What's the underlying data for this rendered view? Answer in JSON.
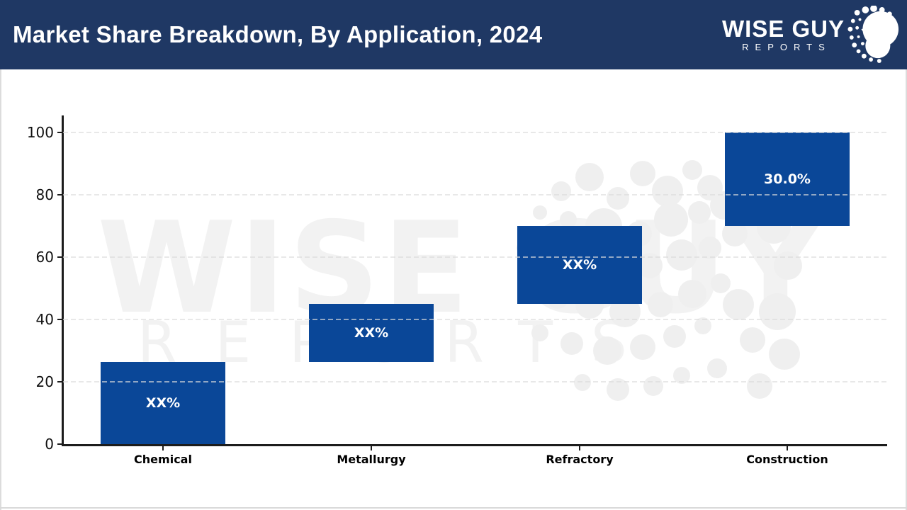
{
  "header": {
    "title": "Market Share Breakdown, By Application, 2024",
    "logo": {
      "line1": "WISE GUY",
      "line2": "REPORTS"
    }
  },
  "watermark": {
    "line1": "WISE GUY",
    "line2": "REPORTS"
  },
  "colors": {
    "header_bg": "#1F3864",
    "bar": "#0A4798",
    "bar_label": "#FFFFFF",
    "axis": "#1C1C1C",
    "gridline": "#DBDBDB",
    "tick_text": "#111111",
    "category_text": "#000000",
    "title_text": "#FFFFFF",
    "watermark": "#F2F2F2",
    "bottom_divider": "#D9D9D9"
  },
  "chart_data": {
    "type": "bar",
    "subtype": "floating-segment-waterfall",
    "title": "Market Share Breakdown, By Application, 2024",
    "categories": [
      "Chemical",
      "Metallurgy",
      "Refractory",
      "Construction"
    ],
    "series": [
      {
        "name": "Market share by application (%)",
        "segments": [
          {
            "category": "Chemical",
            "from": 0,
            "to": 26.4,
            "label": "XX%"
          },
          {
            "category": "Metallurgy",
            "from": 26.4,
            "to": 45,
            "label": "XX%"
          },
          {
            "category": "Refractory",
            "from": 45,
            "to": 70,
            "label": "XX%"
          },
          {
            "category": "Construction",
            "from": 70,
            "to": 100,
            "label": "30.0%"
          }
        ]
      }
    ],
    "xlabel": "",
    "ylabel": "",
    "ylim": [
      0,
      100
    ],
    "yticks": [
      0,
      20,
      40,
      60,
      80,
      100
    ],
    "grid": "horizontal-dashed",
    "legend": "none"
  }
}
